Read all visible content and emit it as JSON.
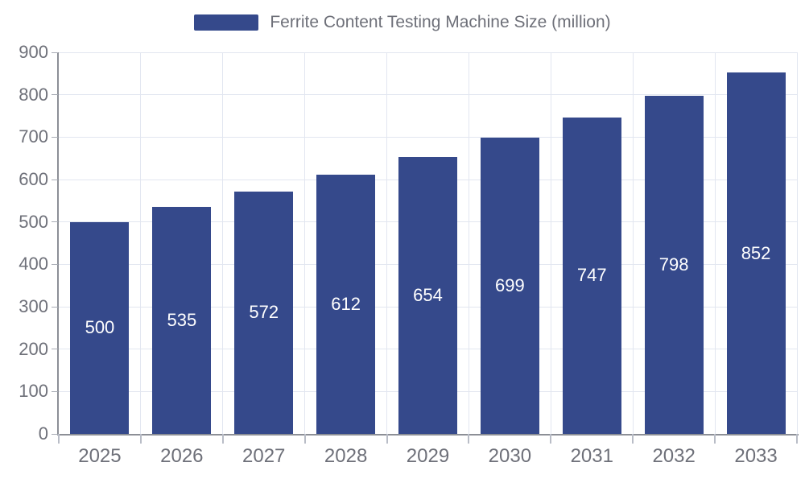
{
  "chart_data": {
    "type": "bar",
    "title": "",
    "categories": [
      "2025",
      "2026",
      "2027",
      "2028",
      "2029",
      "2030",
      "2031",
      "2032",
      "2033"
    ],
    "series": [
      {
        "name": "Ferrite Content Testing Machine Size (million)",
        "values": [
          500,
          535,
          572,
          612,
          654,
          699,
          747,
          798,
          852
        ]
      }
    ],
    "xlabel": "",
    "ylabel": "",
    "ylim": [
      0,
      900
    ],
    "yticks": [
      0,
      100,
      200,
      300,
      400,
      500,
      600,
      700,
      800,
      900
    ],
    "grid": "on",
    "legend_position": "top-center",
    "legend_entries": [
      "Ferrite Content Testing Machine Size (million)"
    ],
    "bar_color": "#35498B",
    "bar_value_label_color": "#FFFFFF",
    "axis_label_color": "#6E7079",
    "grid_color": "#E2E6F0",
    "axis_line_color": "#8C8F96"
  }
}
